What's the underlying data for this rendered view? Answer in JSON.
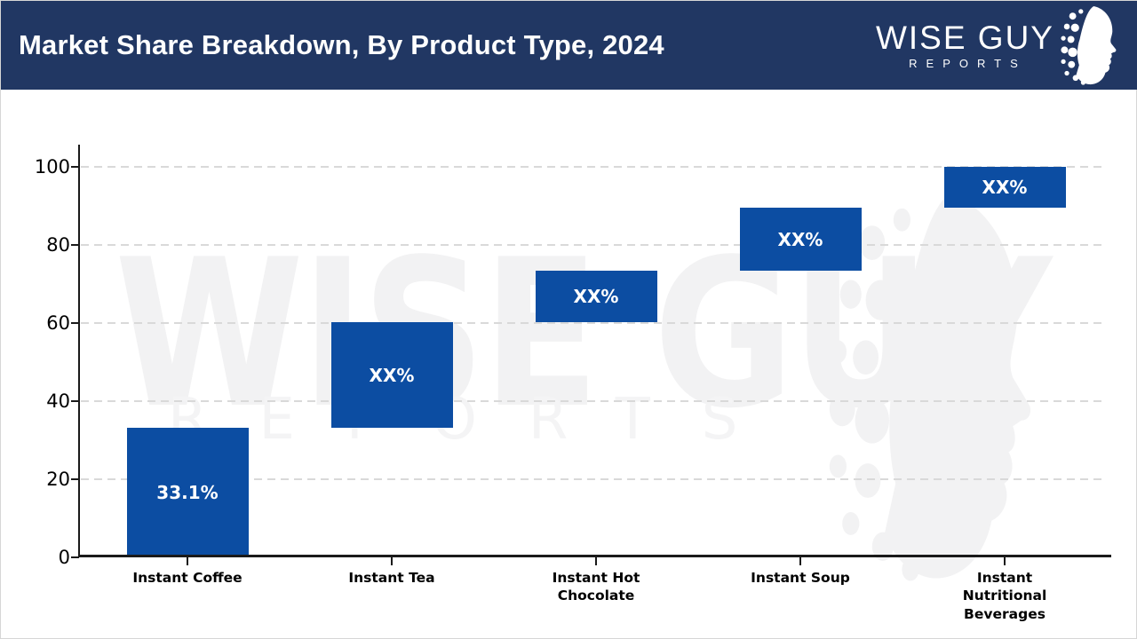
{
  "header": {
    "title": "Market Share Breakdown, By Product Type, 2024",
    "logo": {
      "brand_line1": "WISE GUY",
      "brand_line2": "REPORTS"
    }
  },
  "watermark": {
    "big_text": "WISE GUY",
    "small_text": "REPORTS"
  },
  "chart_data": {
    "type": "bar",
    "subtype": "waterfall",
    "title": "Market Share Breakdown, By Product Type, 2024",
    "categories": [
      "Instant Coffee",
      "Instant Tea",
      "Instant Hot\nChocolate",
      "Instant Soup",
      "Instant\nNutritional\nBeverages"
    ],
    "series": [
      {
        "name": "Market share (%)",
        "segments": [
          {
            "category": "Instant Coffee",
            "start": 0,
            "end": 33.1,
            "label": "33.1%"
          },
          {
            "category": "Instant Tea",
            "start": 33.1,
            "end": 60.2,
            "label": "XX%"
          },
          {
            "category": "Instant Hot Chocolate",
            "start": 60.2,
            "end": 73.3,
            "label": "XX%"
          },
          {
            "category": "Instant Soup",
            "start": 73.3,
            "end": 89.5,
            "label": "XX%"
          },
          {
            "category": "Instant Nutritional Beverages",
            "start": 89.5,
            "end": 100,
            "label": "XX%"
          }
        ]
      }
    ],
    "ylim": [
      0,
      100
    ],
    "yticks": [
      0,
      20,
      40,
      60,
      80,
      100
    ],
    "grid": "horizontal-dashed",
    "legend": "none",
    "bar_color": "#0c4da2",
    "bar_label_color": "#ffffff"
  },
  "colors": {
    "header_bg": "#213763",
    "header_text": "#ffffff",
    "bar": "#0c4da2",
    "axis": "#1a1a1a",
    "gridline": "#d9d9d9",
    "watermark": "#f2f2f3"
  }
}
